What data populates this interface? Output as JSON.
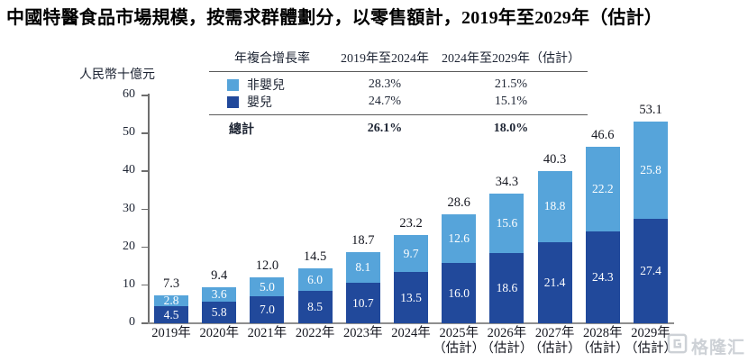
{
  "page": {
    "title": "中國特醫食品市場規模，按需求群體劃分，以零售額計，2019年至2029年（估計）",
    "y_unit_label": "人民幣十億元",
    "watermark_text": "格隆汇"
  },
  "colors": {
    "non_infant": "#56A4DA",
    "infant": "#21499B",
    "axis": "#6e6e6e",
    "text": "#1d2433"
  },
  "cagr_table": {
    "header": [
      "年複合增長率",
      "2019年至2024年",
      "2024年至2029年（估計）"
    ],
    "rows": [
      {
        "label": "非嬰兒",
        "swatch": "non_infant",
        "period1": "28.3%",
        "period2": "21.5%"
      },
      {
        "label": "嬰兒",
        "swatch": "infant",
        "period1": "24.7%",
        "period2": "15.1%"
      }
    ],
    "total": {
      "label": "總計",
      "period1": "26.1%",
      "period2": "18.0%"
    }
  },
  "chart_data": {
    "type": "bar",
    "stacked": true,
    "title": "中國特醫食品市場規模，按需求群體劃分，以零售額計，2019年至2029年（估計）",
    "ylabel": "人民幣十億元",
    "ylim": [
      0,
      60
    ],
    "yticks": [
      0,
      10,
      20,
      30,
      40,
      50,
      60
    ],
    "grid": false,
    "legend_position": "top-table",
    "categories": [
      "2019年",
      "2020年",
      "2021年",
      "2022年",
      "2023年",
      "2024年",
      "2025年",
      "2026年",
      "2027年",
      "2028年",
      "2029年"
    ],
    "estimate_suffix": "（估計）",
    "estimate_from_index": 6,
    "series": [
      {
        "name": "嬰兒",
        "color_key": "infant",
        "values": [
          4.5,
          5.8,
          7.0,
          8.5,
          10.7,
          13.5,
          16.0,
          18.6,
          21.4,
          24.3,
          27.4
        ]
      },
      {
        "name": "非嬰兒",
        "color_key": "non_infant",
        "values": [
          2.8,
          3.6,
          5.0,
          6.0,
          8.1,
          9.7,
          12.6,
          15.6,
          18.8,
          22.2,
          25.8
        ]
      }
    ],
    "totals": [
      7.3,
      9.4,
      12.0,
      14.5,
      18.7,
      23.2,
      28.6,
      34.3,
      40.3,
      46.6,
      53.1
    ]
  }
}
